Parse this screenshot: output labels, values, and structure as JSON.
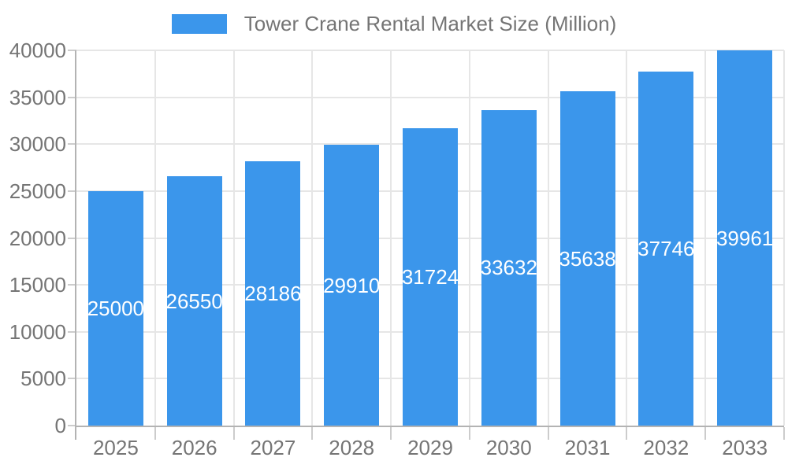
{
  "chart_data": {
    "type": "bar",
    "title": "Tower Crane Rental Market Size (Million)",
    "legend": {
      "label": "Tower Crane Rental Market Size (Million)",
      "position": "top"
    },
    "categories": [
      "2025",
      "2026",
      "2027",
      "2028",
      "2029",
      "2030",
      "2031",
      "2032",
      "2033"
    ],
    "values": [
      25000,
      26550,
      28186,
      29910,
      31724,
      33632,
      35638,
      37746,
      39961
    ],
    "xlabel": "",
    "ylabel": "",
    "ylim": [
      0,
      40000
    ],
    "ytick_step": 5000,
    "ytick_labels": [
      "0",
      "5000",
      "10000",
      "15000",
      "20000",
      "25000",
      "30000",
      "35000",
      "40000"
    ],
    "grid": true,
    "bar_value_labels_visible": true,
    "colors": {
      "bar": "#3b96eb",
      "bar_label": "#ffffff",
      "axis_line": "#b3b3b3",
      "tick": "#cccccc",
      "grid": "#e6e6e6",
      "text": "#757575",
      "background": "#ffffff"
    }
  }
}
